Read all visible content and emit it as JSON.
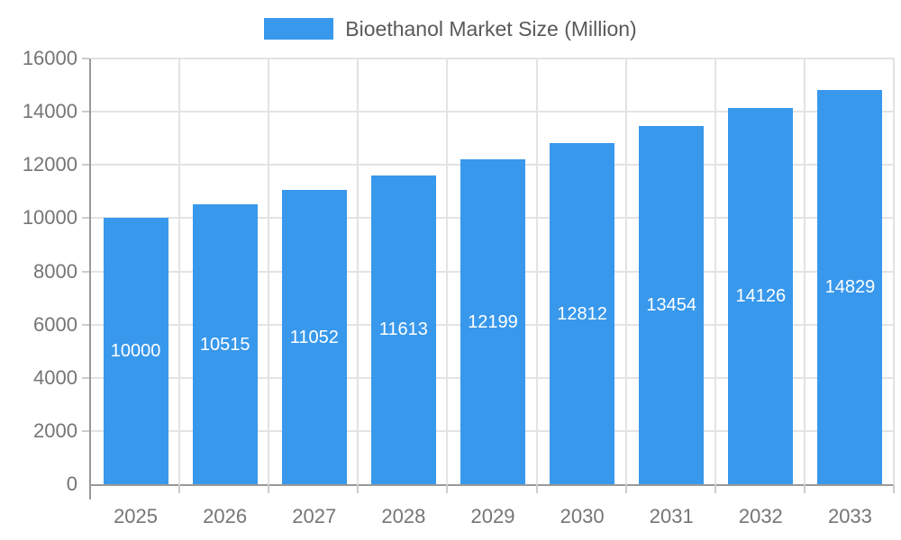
{
  "legend": {
    "label": "Bioethanol Market Size (Million)"
  },
  "colors": {
    "bar": "#3898EC",
    "axis_line": "#999999",
    "gridline": "#E3E3E3",
    "tick": "#CCCCCC",
    "axis_text": "#757575",
    "legend_text": "#595959",
    "bar_label_text": "#FFFFFF",
    "background": "#FFFFFF"
  },
  "chart_data": {
    "type": "bar",
    "title": "Bioethanol Market Size (Million)",
    "categories": [
      "2025",
      "2026",
      "2027",
      "2028",
      "2029",
      "2030",
      "2031",
      "2032",
      "2033"
    ],
    "series": [
      {
        "name": "Bioethanol Market Size (Million)",
        "values": [
          10000,
          10515,
          11052,
          11613,
          12199,
          12812,
          13454,
          14126,
          14829
        ]
      }
    ],
    "bar_value_labels": [
      "10000",
      "10515",
      "11052",
      "11613",
      "12199",
      "12812",
      "13454",
      "14126",
      "14829"
    ],
    "xlabel": "",
    "ylabel": "",
    "ylim": [
      0,
      16000
    ],
    "y_ticks": [
      0,
      2000,
      4000,
      6000,
      8000,
      10000,
      12000,
      14000,
      16000
    ],
    "grid": true,
    "legend_position": "top",
    "value_label_style": "inside-center-white"
  }
}
